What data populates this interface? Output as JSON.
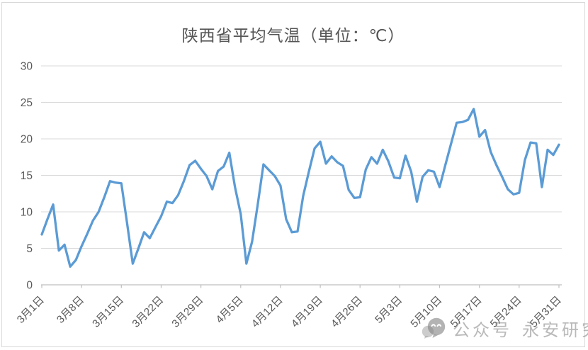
{
  "chart": {
    "title": "陕西省平均气温（单位：℃）"
  },
  "watermark": {
    "icon": "wechat-icon",
    "text1": "公众号",
    "text2": "永安研究"
  },
  "chart_data": {
    "type": "line",
    "title": "陕西省平均气温（单位：℃）",
    "series_name": "陕西省平均气温",
    "unit": "℃",
    "x_start": "3月1日",
    "x_end": "5月31日",
    "x_step_days": 1,
    "x_tick_labels": [
      "3月1日",
      "3月8日",
      "3月15日",
      "3月22日",
      "3月29日",
      "4月5日",
      "4月12日",
      "4月19日",
      "4月26日",
      "5月3日",
      "5月10日",
      "5月17日",
      "5月24日",
      "5月31日"
    ],
    "y_ticks": [
      0,
      5,
      10,
      15,
      20,
      25,
      30
    ],
    "ylim": [
      0,
      30
    ],
    "grid": "horizontal",
    "legend": "none",
    "line_color": "#5B9BD5",
    "grid_color": "#d9d9d9",
    "axis_color": "#bfbfbf",
    "label_color": "#595959",
    "values": [
      6.9,
      9.0,
      11.0,
      4.7,
      5.5,
      2.5,
      3.4,
      5.3,
      7.0,
      8.8,
      10.0,
      12.0,
      14.2,
      14.0,
      13.9,
      8.5,
      2.9,
      5.0,
      7.2,
      6.4,
      7.9,
      9.4,
      11.4,
      11.2,
      12.3,
      14.2,
      16.4,
      17.0,
      15.9,
      14.9,
      13.1,
      15.6,
      16.2,
      18.1,
      13.4,
      9.7,
      2.9,
      5.9,
      11.0,
      16.5,
      15.7,
      14.9,
      13.6,
      9.0,
      7.2,
      7.3,
      12.2,
      15.5,
      18.7,
      19.6,
      16.6,
      17.6,
      16.8,
      16.3,
      13.0,
      11.9,
      12.0,
      15.8,
      17.5,
      16.6,
      18.5,
      16.9,
      14.7,
      14.6,
      17.7,
      15.5,
      11.4,
      14.8,
      15.7,
      15.5,
      13.4,
      16.4,
      19.3,
      22.2,
      22.3,
      22.6,
      24.1,
      20.3,
      21.2,
      18.2,
      16.4,
      14.8,
      13.1,
      12.4,
      12.6,
      17.1,
      19.5,
      19.4,
      13.4,
      18.5,
      17.8,
      19.2
    ]
  }
}
